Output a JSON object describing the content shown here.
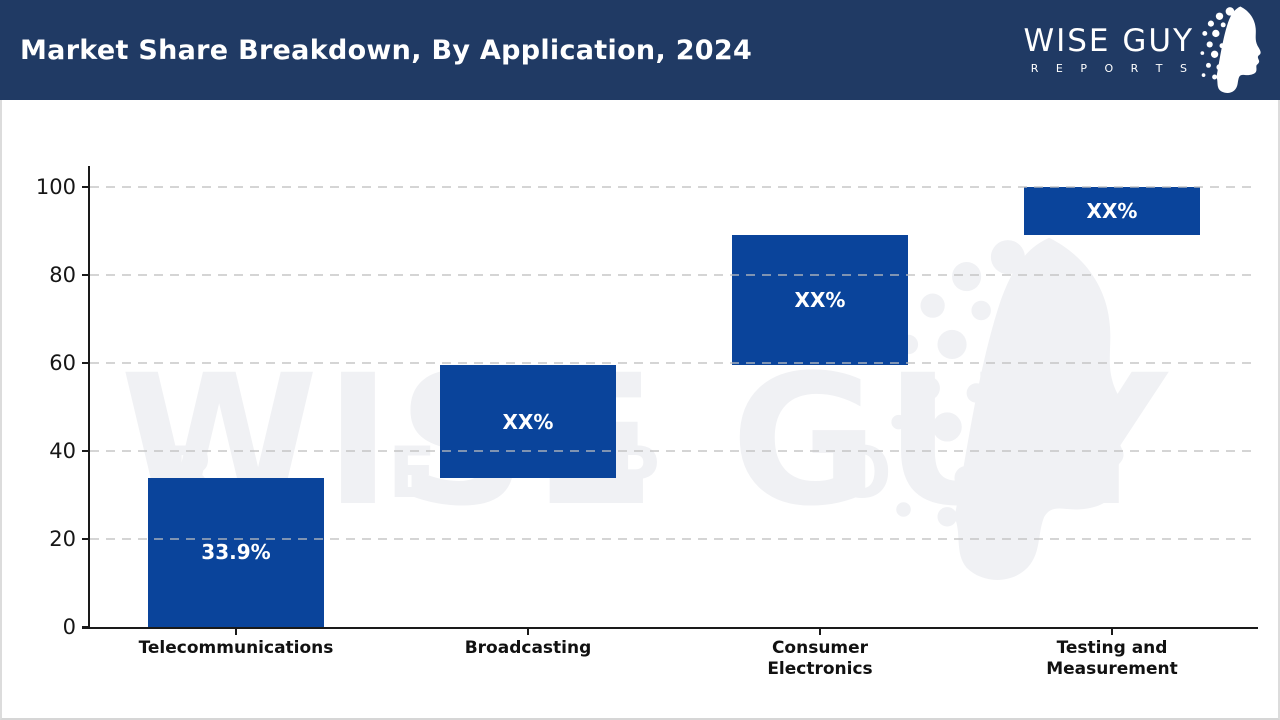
{
  "header": {
    "title": "Market Share Breakdown, By Application, 2024",
    "bg_color": "#203a64",
    "logo": {
      "name": "WISE GUY",
      "tagline": "R E P O R T S"
    }
  },
  "watermark": {
    "text": "WISE GUY",
    "tagline": "R E P O R T S"
  },
  "chart_data": {
    "type": "bar",
    "subtype": "waterfall",
    "title": "Market Share Breakdown, By Application, 2024",
    "categories": [
      "Telecommunications",
      "Broadcasting",
      "Consumer Electronics",
      "Testing and Measurement"
    ],
    "bars": [
      {
        "category": "Telecommunications",
        "label": "33.9%",
        "label_lines": [
          "Telecommunications"
        ],
        "start": 0,
        "end": 33.9
      },
      {
        "category": "Broadcasting",
        "label": "XX%",
        "label_lines": [
          "Broadcasting"
        ],
        "start": 33.9,
        "end": 59.5
      },
      {
        "category": "Consumer Electronics",
        "label": "XX%",
        "label_lines": [
          "Consumer",
          "Electronics"
        ],
        "start": 59.5,
        "end": 89.0
      },
      {
        "category": "Testing and Measurement",
        "label": "XX%",
        "label_lines": [
          "Testing and",
          "Measurement"
        ],
        "start": 89.0,
        "end": 100
      }
    ],
    "ylim": [
      0,
      100
    ],
    "yticks": [
      0,
      20,
      40,
      60,
      80,
      100
    ],
    "grid": "dashed-horizontal",
    "legend": "none",
    "bar_color": "#0a449b",
    "bar_label_color": "#ffffff",
    "axis_color": "#1a1a1a",
    "gridline_color": "#d8d8d8"
  }
}
